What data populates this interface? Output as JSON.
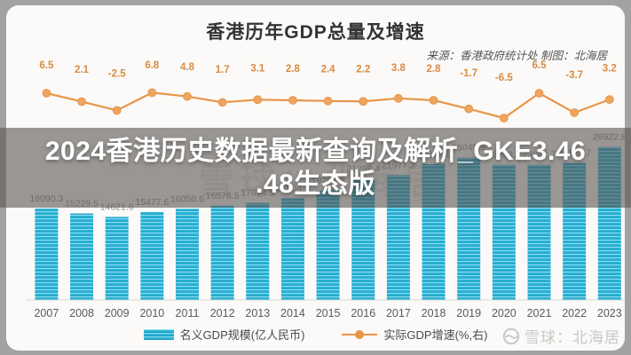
{
  "header": {
    "title": "香港历年GDP总量及增速",
    "source": "来源：香港政府统计处  制图：北海居"
  },
  "overlay": {
    "line1": "2024香港历史数据最新查询及解析_GKE3.46",
    "line2": ".48生态版"
  },
  "chart_data": {
    "type": "bar",
    "title": "香港历年GDP总量及增速",
    "categories": [
      "2007",
      "2008",
      "2009",
      "2010",
      "2011",
      "2012",
      "2013",
      "2014",
      "2015",
      "2016",
      "2017",
      "2018",
      "2019",
      "2020",
      "2021",
      "2022",
      "2023"
    ],
    "series": [
      {
        "name": "名义GDP规模(亿人民币)",
        "type": "bar",
        "color": "#2eb6da",
        "values": [
          16090.3,
          15229.5,
          14621.6,
          15477.6,
          16050.6,
          16578.5,
          17074.5,
          17904.1,
          19280.6,
          21298.4,
          21977.2,
          23937.1,
          25045.9,
          23793.1,
          23801.7,
          24125.7,
          26922.8
        ]
      },
      {
        "name": "实际GDP增速(%,右)",
        "type": "line",
        "color": "#e8954a",
        "values": [
          6.5,
          2.1,
          -2.5,
          6.8,
          4.8,
          1.7,
          3.1,
          2.8,
          2.4,
          2.2,
          3.8,
          2.8,
          -1.7,
          -6.5,
          6.5,
          -3.7,
          3.2
        ]
      }
    ],
    "ylim_left": [
      0,
      28000
    ],
    "ylim_right": [
      -8,
      8
    ],
    "grid": false,
    "legend_position": "bottom"
  },
  "legend": {
    "bar_label": "名义GDP规模(亿人民币)",
    "line_label": "实际GDP增速(%,右)"
  },
  "watermark": {
    "icon": "snowball-logo",
    "text": "雪球：北海居",
    "faint_text": "雪球：北海居"
  },
  "colors": {
    "bar": "#2eb6da",
    "bar_stripe_light": "#8edcee",
    "bar_stripe_dark": "#1795ba",
    "line": "#e8954a",
    "line_label": "#d98a42",
    "bar_label": "#8f8f8f",
    "axis_text": "#5a5a5a"
  }
}
